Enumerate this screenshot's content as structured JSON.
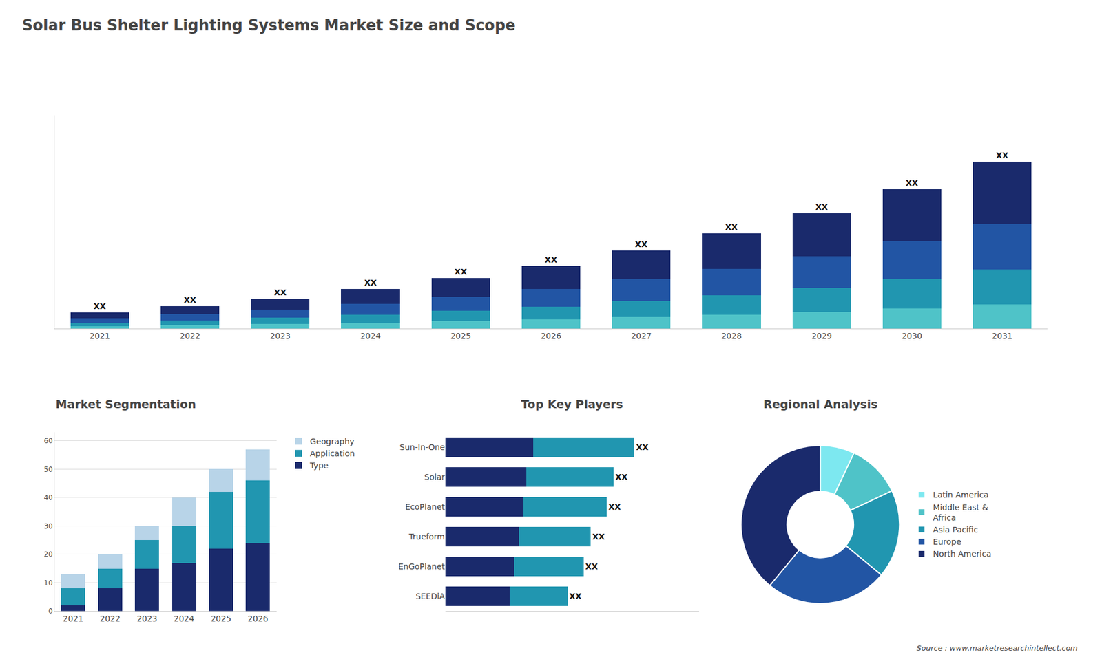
{
  "chart_data": [
    {
      "type": "bar",
      "title": "Solar Bus Shelter Lighting Systems Market Size and Scope",
      "annotations": [
        "Source : www.marketresearchintellect.com"
      ],
      "categories": [
        "2021",
        "2022",
        "2023",
        "2024",
        "2025",
        "2026",
        "2027",
        "2028",
        "2029",
        "2030",
        "2031"
      ],
      "stacked": true,
      "data_labels": true,
      "series": [
        {
          "color": "#4fc3c8",
          "values": [
            0.4,
            0.6,
            0.8,
            1.0,
            1.3,
            1.6,
            2.0,
            2.4,
            2.9,
            3.5,
            4.2
          ]
        },
        {
          "color": "#2196b0",
          "values": [
            0.6,
            0.8,
            1.1,
            1.4,
            1.8,
            2.2,
            2.8,
            3.4,
            4.1,
            5.0,
            6.0
          ]
        },
        {
          "color": "#2255a4",
          "values": [
            0.8,
            1.1,
            1.4,
            1.9,
            2.4,
            3.0,
            3.7,
            4.5,
            5.5,
            6.6,
            7.9
          ]
        },
        {
          "color": "#1a2a6c",
          "values": [
            1.0,
            1.4,
            1.9,
            2.5,
            3.2,
            4.0,
            5.0,
            6.2,
            7.5,
            9.0,
            10.8
          ],
          "value_labels": [
            "XX",
            "XX",
            "XX",
            "XX",
            "XX",
            "XX",
            "XX",
            "XX",
            "XX",
            "XX",
            "XX"
          ]
        }
      ],
      "ylim": [
        0,
        36.992
      ],
      "tick_labels": "x",
      "grid": false
    },
    {
      "type": "bar",
      "title": "Market Segmentation",
      "categories": [
        "2021",
        "2022",
        "2023",
        "2024",
        "2025",
        "2026"
      ],
      "stacked": true,
      "series": [
        {
          "name": "Type",
          "color": "#1a2a6c",
          "values": [
            2,
            8,
            15,
            17,
            22,
            24
          ]
        },
        {
          "name": "Application",
          "color": "#2196b0",
          "values": [
            6,
            7,
            10,
            13,
            20,
            22
          ]
        },
        {
          "name": "Geography",
          "color": "#b8d4e8",
          "values": [
            5,
            5,
            5,
            10,
            8,
            11
          ]
        }
      ],
      "ylim": [
        0,
        63
      ],
      "yticks": [
        0,
        10,
        20,
        30,
        40,
        50,
        60
      ],
      "grid": true,
      "legend": "right",
      "marker": "circle"
    },
    {
      "type": "bar",
      "title": "Top Key Players",
      "orientation": "horizontal",
      "stacked": true,
      "data_labels": true,
      "categories": [
        "Sun-In-One",
        "Solar",
        "EcoPlanet",
        "Trueform",
        "EnGoPlanet",
        "SEEDiA"
      ],
      "series": [
        {
          "color": "#1a2a6c",
          "values": [
            0.38,
            0.35,
            0.34,
            0.32,
            0.3,
            0.28
          ]
        },
        {
          "color": "#2196b0",
          "values": [
            0.44,
            0.38,
            0.36,
            0.31,
            0.3,
            0.25
          ],
          "value_labels": [
            "XX",
            "XX",
            "XX",
            "XX",
            "XX",
            "XX"
          ]
        }
      ],
      "xlim": [
        0,
        1.1
      ],
      "tick_labels": "y",
      "grid": false
    },
    {
      "type": "pie",
      "title": "Regional Analysis",
      "categories": [
        "Latin America",
        "Middle East &\nAfrica",
        "Asia Pacific",
        "Europe",
        "North America"
      ],
      "values": [
        7,
        11,
        18,
        25,
        39
      ],
      "colors": [
        "#7de8f0",
        "#4fc3c8",
        "#2196b0",
        "#2255a4",
        "#1a2a6c"
      ],
      "legend": "right"
    }
  ]
}
